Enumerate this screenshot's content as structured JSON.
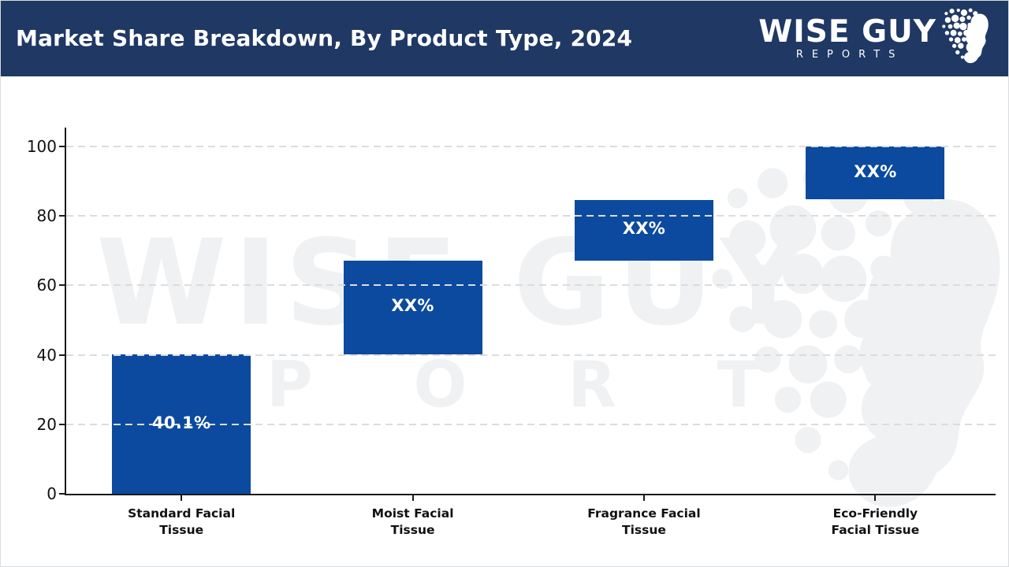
{
  "header": {
    "title": "Market Share Breakdown, By Product Type, 2024",
    "bg_color": "#1f3864"
  },
  "logo": {
    "brand_line1": "WISE GUY",
    "brand_line2": "REPORTS"
  },
  "watermark": {
    "line1": "WISE GUY",
    "line2": "P O R T S"
  },
  "chart_data": {
    "type": "bar",
    "subtype": "waterfall-floating-bars",
    "title": "Market Share Breakdown, By Product Type, 2024",
    "categories": [
      "Standard Facial Tissue",
      "Moist Facial Tissue",
      "Fragrance Facial Tissue",
      "Eco-Friendly Facial Tissue"
    ],
    "categories_wrapped": [
      [
        "Standard Facial",
        "Tissue"
      ],
      [
        "Moist Facial",
        "Tissue"
      ],
      [
        "Fragrance Facial",
        "Tissue"
      ],
      [
        "Eco-Friendly",
        "Facial Tissue"
      ]
    ],
    "segments": [
      {
        "category": "Standard Facial Tissue",
        "start": 0,
        "end": 40.1,
        "label": "40.1%"
      },
      {
        "category": "Moist Facial Tissue",
        "start": 40.1,
        "end": 67.2,
        "label": "XX%"
      },
      {
        "category": "Fragrance Facial Tissue",
        "start": 67.2,
        "end": 84.6,
        "label": "XX%"
      },
      {
        "category": "Eco-Friendly Facial Tissue",
        "start": 84.8,
        "end": 100,
        "label": "XX%"
      }
    ],
    "yticks": [
      0,
      20,
      40,
      60,
      80,
      100
    ],
    "ylim": [
      0,
      104.8
    ],
    "xlabel": "",
    "ylabel": "",
    "grid": "horizontal-dashed",
    "legend": "none",
    "bar_color": "#0b4a9e",
    "bar_label_color": "#ffffff",
    "axis_color": "#1a1a1a",
    "gridline_color": "#dcdcdc",
    "watermark_color": "#f0f1f3"
  }
}
